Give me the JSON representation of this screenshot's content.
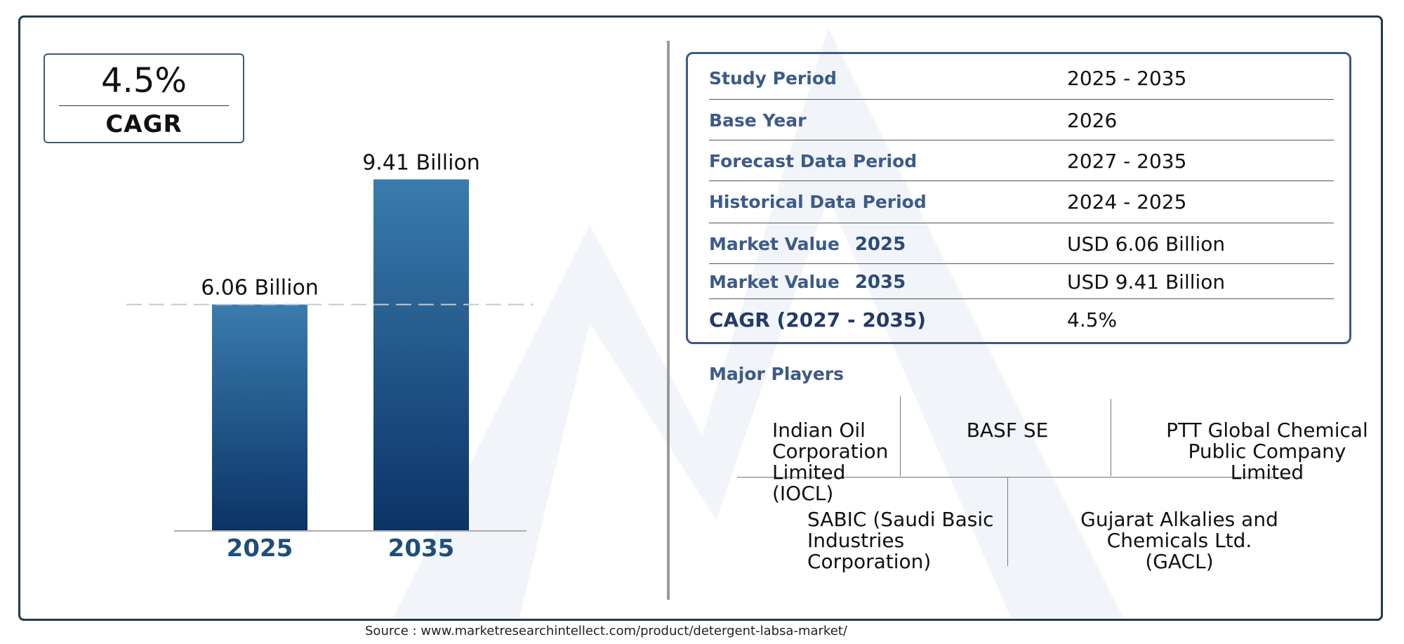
{
  "cagr_badge": {
    "value": "4.5%",
    "label": "CAGR"
  },
  "chart_data": {
    "type": "bar",
    "categories": [
      "2025",
      "2035"
    ],
    "values": [
      6.06,
      9.41
    ],
    "data_labels": [
      "6.06 Billion",
      "9.41 Billion"
    ],
    "ylim": [
      0,
      10
    ],
    "reference_line": 6.06,
    "colors": {
      "bar_top": "#3a7cad",
      "bar_bottom": "#0b3366",
      "tick_label": "#1f4e79"
    }
  },
  "details": {
    "rows": [
      {
        "label": "Study Period",
        "year": "",
        "value": "2025 - 2035"
      },
      {
        "label": "Base Year",
        "year": "",
        "value": "2026"
      },
      {
        "label": "Forecast Data Period",
        "year": "",
        "value": "2027 - 2035"
      },
      {
        "label": "Historical Data Period",
        "year": "",
        "value": "2024 - 2025"
      },
      {
        "label": "Market Value",
        "year": "2025",
        "value": "USD 6.06 Billion"
      },
      {
        "label": "Market Value",
        "year": "2035",
        "value": "USD 9.41 Billion"
      },
      {
        "label": "CAGR (2027 - 2035)",
        "year": "",
        "value": "4.5%"
      }
    ]
  },
  "players": {
    "title": "Major Players",
    "names": [
      "Indian Oil Corporation Limited (IOCL)",
      "BASF SE",
      "PTT Global Chemical Public Company Limited",
      "SABIC (Saudi Basic Industries Corporation)",
      "Gujarat Alkalies and Chemicals Ltd. (GACL)"
    ]
  },
  "source": "Source : www.marketresearchintellect.com/product/detergent-labsa-market/"
}
